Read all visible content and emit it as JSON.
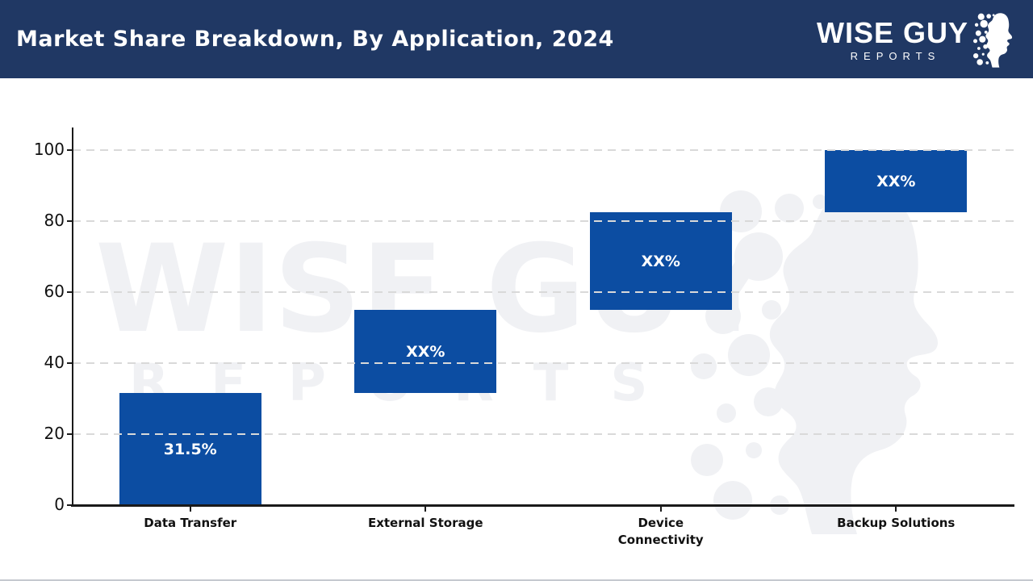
{
  "header": {
    "title": "Market Share Breakdown, By Application, 2024",
    "logo": {
      "line1": "WISE GUY",
      "line2": "REPORTS"
    }
  },
  "watermark": {
    "line1": "WISE GUY",
    "line2": "REPORTS"
  },
  "colors": {
    "header_bg": "#203864",
    "bar": "#0c4da2",
    "grid": "#d9d9d9",
    "axis": "#1a1a1a",
    "bar_label": "#ffffff",
    "watermark": "#f0f1f4"
  },
  "chart_data": {
    "type": "bar",
    "subtype": "waterfall",
    "title": "Market Share Breakdown, By Application, 2024",
    "categories": [
      "Data Transfer",
      "External Storage",
      "Device\nConnectivity",
      "Backup Solutions"
    ],
    "segments": [
      {
        "category": "Data Transfer",
        "start": 0,
        "end": 31.5,
        "label": "31.5%"
      },
      {
        "category": "External Storage",
        "start": 31.5,
        "end": 55,
        "label": "XX%"
      },
      {
        "category": "Device Connectivity",
        "start": 55,
        "end": 82.5,
        "label": "XX%"
      },
      {
        "category": "Backup Solutions",
        "start": 82.5,
        "end": 100,
        "label": "XX%"
      }
    ],
    "xlabel": "",
    "ylabel": "",
    "ylim": [
      0,
      100
    ],
    "yticks": [
      0,
      20,
      40,
      60,
      80,
      100
    ],
    "grid": "horizontal-dashed",
    "legend": "none",
    "unit": "percent"
  }
}
